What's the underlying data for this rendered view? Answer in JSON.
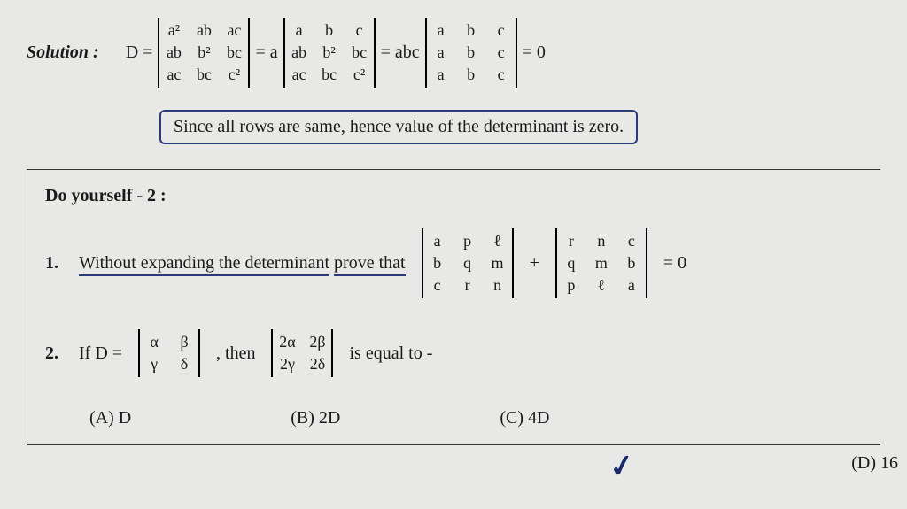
{
  "solution": {
    "label": "Solution :",
    "D_eq": "D =",
    "det1": [
      [
        "a²",
        "ab",
        "ac"
      ],
      [
        "ab",
        "b²",
        "bc"
      ],
      [
        "ac",
        "bc",
        "c²"
      ]
    ],
    "eq1": "= a",
    "det2": [
      [
        "a",
        "b",
        "c"
      ],
      [
        "ab",
        "b²",
        "bc"
      ],
      [
        "ac",
        "bc",
        "c²"
      ]
    ],
    "eq2": "= abc",
    "det3": [
      [
        "a",
        "b",
        "c"
      ],
      [
        "a",
        "b",
        "c"
      ],
      [
        "a",
        "b",
        "c"
      ]
    ],
    "eq3": "= 0"
  },
  "boxed_note": "Since all rows are same, hence value of the determinant is zero.",
  "do_yourself": "Do yourself - 2 :",
  "p1": {
    "num": "1.",
    "text_a": "Without expanding the ",
    "text_b": "determinant",
    "text_c": " prove that",
    "detA": [
      [
        "a",
        "p",
        "ℓ"
      ],
      [
        "b",
        "q",
        "m"
      ],
      [
        "c",
        "r",
        "n"
      ]
    ],
    "plus": "+",
    "detB": [
      [
        "r",
        "n",
        "c"
      ],
      [
        "q",
        "m",
        "b"
      ],
      [
        "p",
        "ℓ",
        "a"
      ]
    ],
    "eq": "= 0"
  },
  "p2": {
    "num": "2.",
    "text_a": "If D =",
    "det1": [
      [
        "α",
        "β"
      ],
      [
        "γ",
        "δ"
      ]
    ],
    "text_b": ", then",
    "det2": [
      [
        "2α",
        "2β"
      ],
      [
        "2γ",
        "2δ"
      ]
    ],
    "text_c": "is equal to -"
  },
  "options": {
    "a": "(A) D",
    "b": "(B) 2D",
    "c": "(C) 4D",
    "d": "(D) 16"
  }
}
